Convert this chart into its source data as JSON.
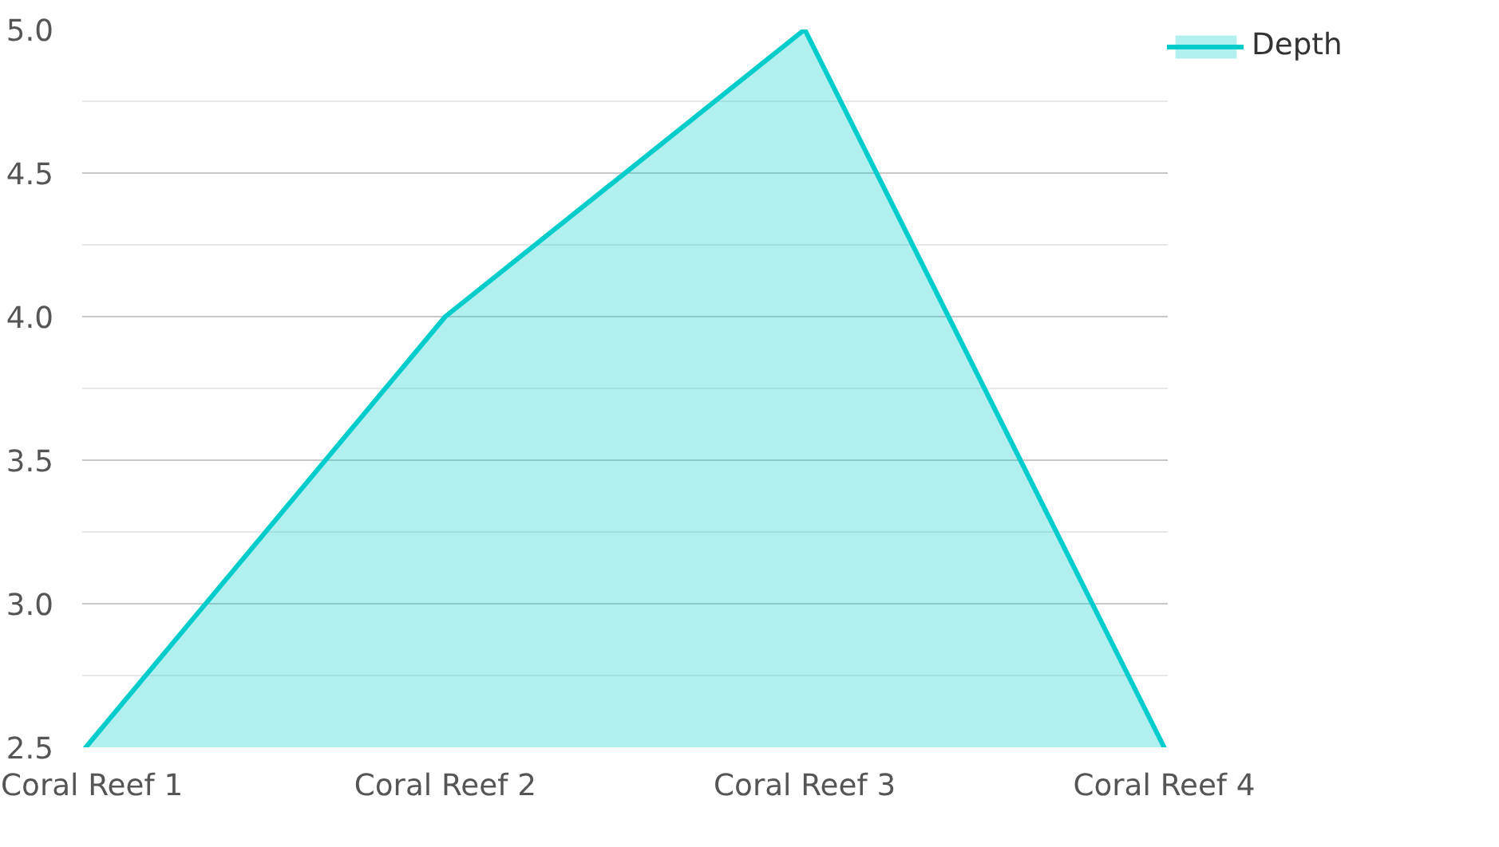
{
  "chart_data": {
    "type": "area",
    "categories": [
      "Coral Reef 1",
      "Coral Reef 2",
      "Coral Reef 3",
      "Coral Reef 4"
    ],
    "series": [
      {
        "name": "Depth",
        "color": "#00cccc",
        "values": [
          2.5,
          4.0,
          5.0,
          2.5
        ]
      }
    ],
    "ylim": [
      2.5,
      5.0
    ],
    "yticks": [
      2.5,
      {
        "value": 2.75,
        "label": null
      },
      {
        "value": 3,
        "label": "3.0"
      },
      {
        "value": 3.25,
        "label": null
      },
      3.5,
      {
        "value": 3.75,
        "label": null
      },
      {
        "value": 4,
        "label": "4.0"
      },
      {
        "value": 4.25,
        "label": null
      },
      4.5,
      {
        "value": 4.75,
        "label": null
      },
      {
        "value": 5,
        "label": "5.0"
      }
    ],
    "grid": "y",
    "legend": "top right",
    "line_style": "solid"
  }
}
